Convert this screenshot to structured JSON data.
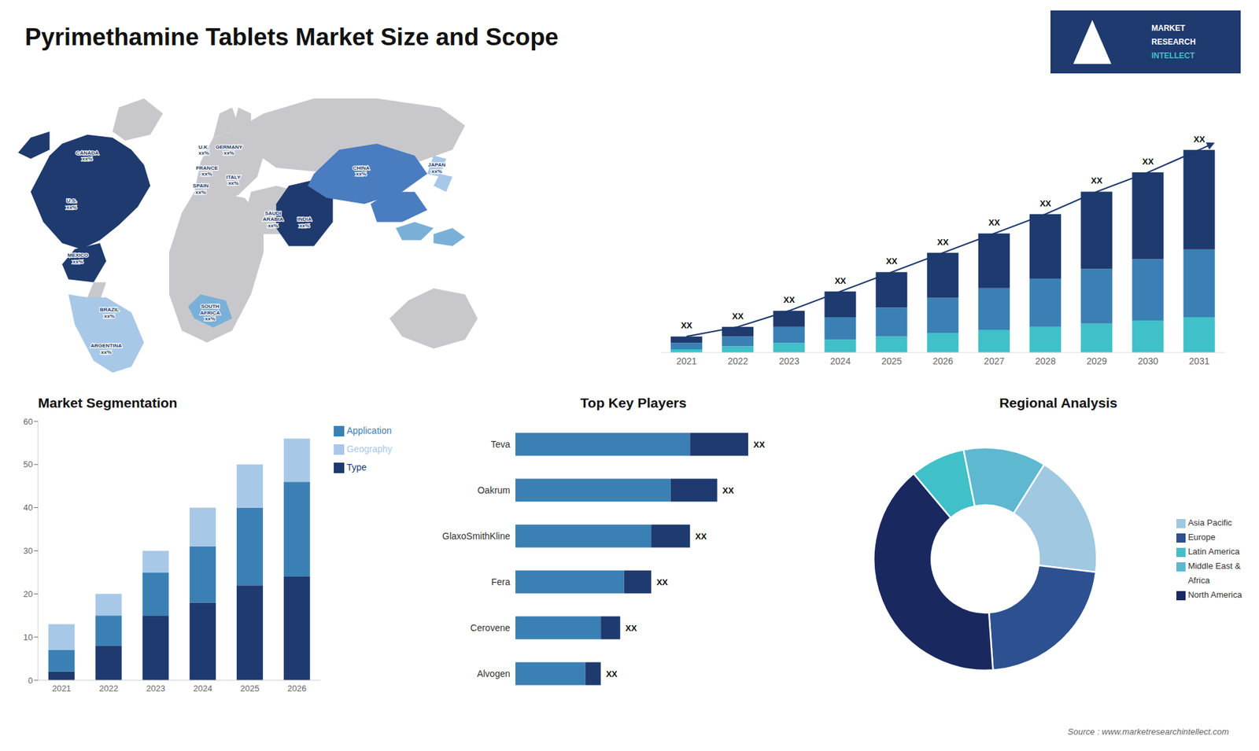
{
  "title": "Pyrimethamine Tablets Market Size and Scope",
  "annotations": [
    "MARKET",
    "RESEARCH",
    "INTELLECT",
    "Source : www.marketresearchintellect.com"
  ],
  "chart_data": [
    {
      "type": "map",
      "colors": [
        "#c8c8cc",
        "#1e3a6e",
        "#4a7cc0",
        "#7ab0d8",
        "#a8c8e8"
      ],
      "annotations": [
        "U.S.\nxx%",
        "CANADA\nxx%",
        "MEXICO\nxx%",
        "BRAZIL\nxx%",
        "ARGENTINA\nxx%",
        "U.K.\nxx%",
        "FRANCE\nxx%",
        "SPAIN\nxx%",
        "GERMANY\nxx%",
        "ITALY\nxx%",
        "SAUDI\nARABIA\nxx%",
        "CHINA\nxx%",
        "INDIA\nxx%",
        "JAPAN\nxx%",
        "SOUTH\nAFRICA\nxx%"
      ],
      "tick_labels": false
    },
    {
      "type": "bar",
      "stacked": true,
      "categories": [
        "2021",
        "2022",
        "2023",
        "2024",
        "2025",
        "2026",
        "2027",
        "2028",
        "2029",
        "2030",
        "2031"
      ],
      "series": [
        {
          "type": "bar",
          "color": "#40c0c8",
          "values": [
            1,
            2,
            3,
            4,
            5,
            6,
            7,
            8,
            9,
            10,
            11
          ]
        },
        {
          "type": "bar",
          "color": "#3a80b4",
          "values": [
            2,
            3,
            5,
            7,
            9,
            11,
            13,
            15,
            17,
            19,
            21
          ]
        },
        {
          "type": "bar",
          "color": "#1e3a6e",
          "values": [
            2,
            3,
            5,
            8,
            11,
            14,
            17,
            20,
            24,
            27,
            31
          ]
        },
        {
          "type": "line",
          "color": "#1e3a6e",
          "values": [
            5,
            8,
            13,
            19,
            25,
            31,
            37,
            43,
            50,
            56,
            63
          ]
        }
      ],
      "annotations": [
        "XX",
        "XX",
        "XX",
        "XX",
        "XX",
        "XX",
        "XX",
        "XX",
        "XX",
        "XX",
        "XX"
      ],
      "ylim": [
        0,
        80.64
      ],
      "tick_labels": "x"
    },
    {
      "type": "bar",
      "stacked": true,
      "title": "Market Segmentation",
      "categories": [
        "2021",
        "2022",
        "2023",
        "2024",
        "2025",
        "2026"
      ],
      "series": [
        {
          "name": "Type",
          "color": "#1e3a6e",
          "values": [
            2,
            8,
            15,
            18,
            22,
            24
          ]
        },
        {
          "name": "Application",
          "color": "#3a80b4",
          "values": [
            5,
            7,
            10,
            13,
            18,
            22
          ]
        },
        {
          "name": "Geography",
          "color": "#a8c8e8",
          "values": [
            6,
            5,
            5,
            9,
            10,
            10
          ]
        }
      ],
      "ylim": [
        0,
        60
      ],
      "yticks": [
        0,
        10,
        20,
        30,
        40,
        50,
        60
      ],
      "legend": "right"
    },
    {
      "type": "bar",
      "orientation": "horizontal",
      "stacked": true,
      "title": "Top Key Players",
      "categories": [
        "Teva",
        "Oakrum",
        "GlaxoSmithKline",
        "Fera",
        "Cerovene",
        "Alvogen"
      ],
      "series": [
        {
          "color": "#3a80b4",
          "values": [
            4.5,
            4.0,
            3.5,
            2.8,
            2.2,
            1.8
          ]
        },
        {
          "color": "#1e3a6e",
          "values": [
            1.5,
            1.2,
            1.0,
            0.7,
            0.5,
            0.4
          ]
        }
      ],
      "annotations": [
        "XX",
        "XX",
        "XX",
        "XX",
        "XX",
        "XX"
      ],
      "xlim": [
        0,
        8.28
      ],
      "tick_labels": "y"
    },
    {
      "type": "donut",
      "title": "Regional Analysis",
      "categories": [
        "Latin America",
        "Middle East &\nAfrica",
        "Asia Pacific",
        "Europe",
        "North America"
      ],
      "values": [
        8,
        12,
        18,
        22,
        40
      ],
      "colors": [
        "#40c0c8",
        "#5db8d0",
        "#a0c8e0",
        "#2d5090",
        "#1a2860"
      ],
      "legend": "right"
    }
  ]
}
